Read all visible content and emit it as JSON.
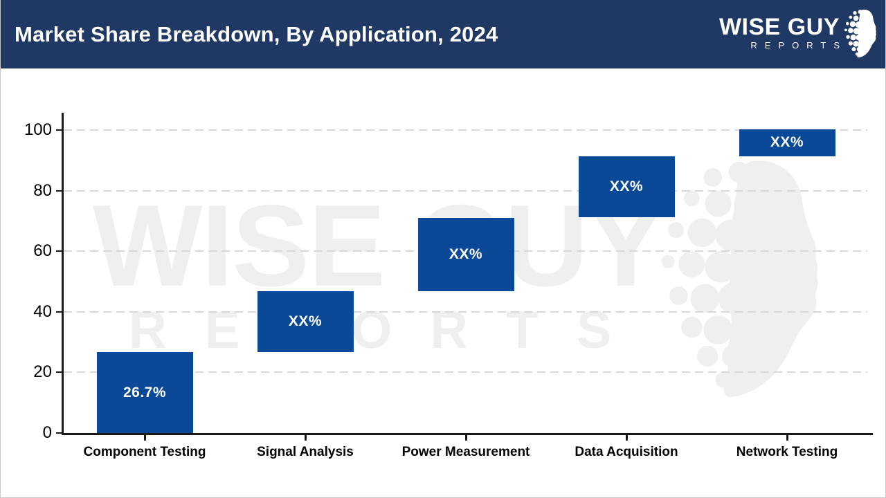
{
  "header": {
    "title": "Market Share Breakdown, By Application, 2024",
    "logo": {
      "line1": "WISE GUY",
      "line2": "REPORTS"
    }
  },
  "watermark": {
    "line1": "WISE GUY",
    "line2": "REPORTS"
  },
  "chart_data": {
    "type": "bar",
    "subtype": "floating-segment-waterfall",
    "categories": [
      "Component Testing",
      "Signal Analysis",
      "Power Measurement",
      "Data Acquisition",
      "Network Testing"
    ],
    "segments": [
      {
        "category": "Component Testing",
        "start": 0,
        "end": 26.7,
        "label": "26.7%"
      },
      {
        "category": "Signal Analysis",
        "start": 26.7,
        "end": 46.8,
        "label": "XX%"
      },
      {
        "category": "Power Measurement",
        "start": 46.9,
        "end": 71.1,
        "label": "XX%"
      },
      {
        "category": "Data Acquisition",
        "start": 71.2,
        "end": 91.3,
        "label": "XX%"
      },
      {
        "category": "Network Testing",
        "start": 91.3,
        "end": 100.3,
        "label": "XX%"
      }
    ],
    "yticks": [
      0,
      20,
      40,
      60,
      80,
      100
    ],
    "ylim": [
      0,
      105
    ],
    "xlabel": "",
    "ylabel": "",
    "grid": "horizontal-dashed",
    "legend": "none"
  },
  "colors": {
    "header_bg": "#1F3864",
    "bar": "#0A4898",
    "bar_label": "#FFFFFF",
    "axis": "#1A1A1A",
    "grid": "#D8D8D8",
    "watermark": "#EFEFEF",
    "page_bg": "#FFFFFF",
    "page_border": "#C9C9C9"
  }
}
